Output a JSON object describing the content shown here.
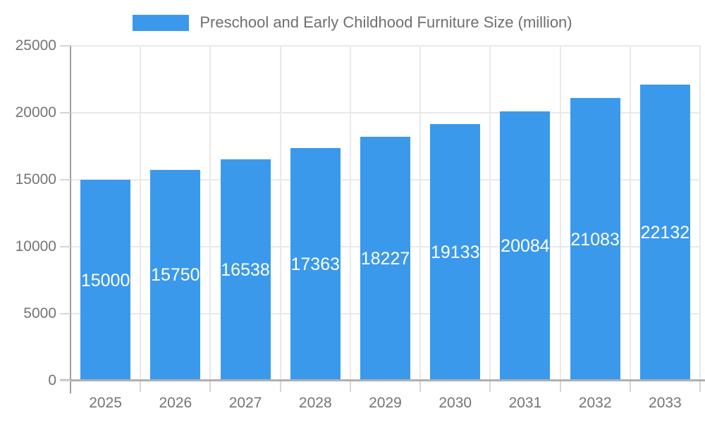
{
  "chart_data": {
    "type": "bar",
    "title": "Preschool and Early Childhood Furniture Size (million)",
    "categories": [
      "2025",
      "2026",
      "2027",
      "2028",
      "2029",
      "2030",
      "2031",
      "2032",
      "2033"
    ],
    "series": [
      {
        "name": "Preschool and Early Childhood Furniture Size (million)",
        "values": [
          15000,
          15750,
          16538,
          17363,
          18227,
          19133,
          20084,
          21083,
          22132
        ]
      }
    ],
    "xlabel": "",
    "ylabel": "",
    "ylim": [
      0,
      25000
    ],
    "yticks": [
      0,
      5000,
      10000,
      15000,
      20000,
      25000
    ],
    "ytick_labels": [
      "0",
      "5000",
      "10000",
      "15000",
      "20000",
      "25000"
    ],
    "grid": true,
    "legend_position": "top",
    "value_label_position": "inside-center"
  },
  "legend": {
    "label": "Preschool and Early Childhood Furniture Size (million)"
  },
  "colors": {
    "bar": "#3B99EC",
    "value_label": "#ffffff",
    "grid_line": "#e9e9e9",
    "y_axis_line": "#9e9e9e",
    "x_axis_line": "#b0b0b0",
    "tick": "#d6d6d6",
    "axis_text": "#757575",
    "legend_text": "#6f6f6f",
    "background": "#ffffff"
  }
}
